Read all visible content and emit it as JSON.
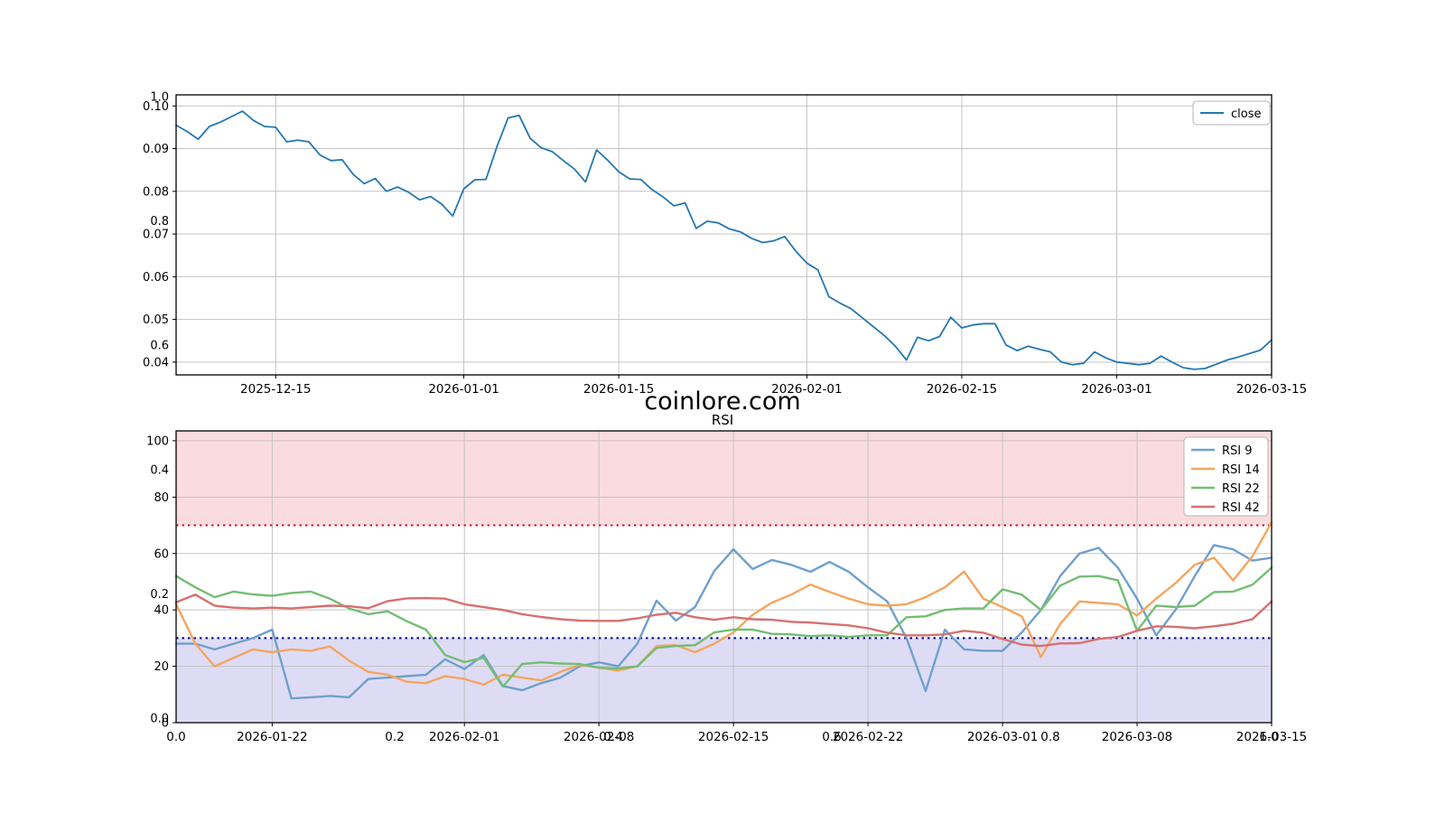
{
  "figure": {
    "watermark": "coinlore.com",
    "rsi_title": "RSI"
  },
  "colors": {
    "close": "#2478b0",
    "rsi9": "#6fa0cd",
    "rsi14": "#f5a55f",
    "rsi22": "#74bd74",
    "rsi42": "#d77070",
    "overbought_line": "#d4143c",
    "oversold_line": "#00008b",
    "overbought_band": "#fbdcde",
    "oversold_band": "#dedcf5",
    "grid": "#c3c3c3",
    "spine": "#000000",
    "watermark_color": "#8c8c8c",
    "legend_border": "#b3b3b3"
  },
  "overlay_axis": {
    "yticks": [
      {
        "label": "1.0",
        "value": 1.0
      },
      {
        "label": "0.8",
        "value": 0.8
      },
      {
        "label": "0.6",
        "value": 0.6
      },
      {
        "label": "0.4",
        "value": 0.4
      },
      {
        "label": "0.2",
        "value": 0.2
      },
      {
        "label": "0.0",
        "value": 0.0
      }
    ],
    "xticks": [
      {
        "label": "0.0",
        "value": 0.0
      },
      {
        "label": "0.2",
        "value": 0.2
      },
      {
        "label": "0.4",
        "value": 0.4
      },
      {
        "label": "0.6",
        "value": 0.6
      },
      {
        "label": "0.8",
        "value": 0.8
      },
      {
        "label": "1.0",
        "value": 1.0
      }
    ]
  },
  "legends": {
    "price": {
      "close": "close"
    },
    "rsi": {
      "rsi9": "RSI 9",
      "rsi14": "RSI 14",
      "rsi22": "RSI 22",
      "rsi42": "RSI 42"
    }
  },
  "chart_data": [
    {
      "type": "line",
      "name": "price",
      "x_start": "2025-12-06",
      "x_end": "2026-03-15",
      "ylim": [
        0.037,
        0.1026
      ],
      "grid": true,
      "legend_position": "upper right",
      "yticks": [
        {
          "label": "0.04",
          "value": 0.04
        },
        {
          "label": "0.05",
          "value": 0.05
        },
        {
          "label": "0.06",
          "value": 0.06
        },
        {
          "label": "0.07",
          "value": 0.07
        },
        {
          "label": "0.08",
          "value": 0.08
        },
        {
          "label": "0.09",
          "value": 0.09
        },
        {
          "label": "0.10",
          "value": 0.1
        }
      ],
      "xticks": [
        {
          "label": "2025-12-15",
          "date": "2025-12-15"
        },
        {
          "label": "2026-01-01",
          "date": "2026-01-01"
        },
        {
          "label": "2026-01-15",
          "date": "2026-01-15"
        },
        {
          "label": "2026-02-01",
          "date": "2026-02-01"
        },
        {
          "label": "2026-02-15",
          "date": "2026-02-15"
        },
        {
          "label": "2026-03-01",
          "date": "2026-03-01"
        },
        {
          "label": "2026-03-15",
          "date": "2026-03-15"
        }
      ],
      "series": [
        {
          "name": "close",
          "color_key": "close",
          "width": 1.8,
          "values": [
            0.0955,
            0.094,
            0.0922,
            0.0952,
            0.0962,
            0.0975,
            0.0988,
            0.0966,
            0.0952,
            0.095,
            0.0916,
            0.092,
            0.0916,
            0.0885,
            0.0872,
            0.0874,
            0.084,
            0.0818,
            0.083,
            0.08,
            0.081,
            0.0798,
            0.078,
            0.0788,
            0.077,
            0.0742,
            0.0806,
            0.0827,
            0.0828,
            0.0905,
            0.0972,
            0.0978,
            0.0924,
            0.0902,
            0.0893,
            0.0872,
            0.0852,
            0.0822,
            0.0897,
            0.0873,
            0.0846,
            0.0829,
            0.0828,
            0.0804,
            0.0787,
            0.0766,
            0.0773,
            0.0713,
            0.073,
            0.0726,
            0.0712,
            0.0705,
            0.069,
            0.068,
            0.0684,
            0.0694,
            0.066,
            0.0632,
            0.0616,
            0.0553,
            0.0538,
            0.0525,
            0.0504,
            0.0483,
            0.0462,
            0.0437,
            0.0405,
            0.0458,
            0.045,
            0.046,
            0.0505,
            0.048,
            0.0487,
            0.049,
            0.049,
            0.044,
            0.0427,
            0.0437,
            0.043,
            0.0424,
            0.04,
            0.0394,
            0.0397,
            0.0424,
            0.041,
            0.04,
            0.0397,
            0.0394,
            0.0397,
            0.0414,
            0.04,
            0.0387,
            0.0383,
            0.0385,
            0.0395,
            0.0405,
            0.0412,
            0.042,
            0.0428,
            0.0452
          ]
        }
      ]
    },
    {
      "type": "line",
      "name": "rsi",
      "x_start": "2026-01-17",
      "x_end": "2026-03-15",
      "ylim": [
        0,
        103.5
      ],
      "grid": true,
      "legend_position": "upper right",
      "yticks": [
        {
          "label": "0",
          "value": 0
        },
        {
          "label": "20",
          "value": 20
        },
        {
          "label": "40",
          "value": 40
        },
        {
          "label": "60",
          "value": 60
        },
        {
          "label": "80",
          "value": 80
        },
        {
          "label": "100",
          "value": 100
        }
      ],
      "xticks": [
        {
          "label": "2026-01-22",
          "date": "2026-01-22"
        },
        {
          "label": "2026-02-01",
          "date": "2026-02-01"
        },
        {
          "label": "2026-02-08",
          "date": "2026-02-08"
        },
        {
          "label": "2026-02-15",
          "date": "2026-02-15"
        },
        {
          "label": "2026-02-22",
          "date": "2026-02-22"
        },
        {
          "label": "2026-03-01",
          "date": "2026-03-01"
        },
        {
          "label": "2026-03-08",
          "date": "2026-03-08"
        },
        {
          "label": "2026-03-15",
          "date": "2026-03-15"
        }
      ],
      "bands": [
        {
          "name": "overbought-band",
          "from": 70,
          "to": 103.5,
          "color_key": "overbought_band"
        },
        {
          "name": "oversold-band",
          "from": 0,
          "to": 30,
          "color_key": "oversold_band"
        }
      ],
      "hlines": [
        {
          "name": "overbought-threshold",
          "value": 70,
          "color_key": "overbought_line"
        },
        {
          "name": "oversold-threshold",
          "value": 30,
          "color_key": "oversold_line"
        }
      ],
      "series": [
        {
          "name": "RSI 9",
          "color_key": "rsi9",
          "width": 2.4,
          "values": [
            28,
            28,
            26,
            28,
            30,
            33,
            8.6,
            9,
            9.5,
            9,
            15.5,
            16,
            16.5,
            17,
            22.5,
            19,
            24,
            13,
            11.5,
            14,
            16,
            20,
            21.4,
            20,
            28,
            43.3,
            36.2,
            41,
            53.8,
            61.5,
            54.5,
            57.7,
            56,
            53.5,
            57,
            53.5,
            48,
            43,
            30,
            11.2,
            33,
            26,
            25.5,
            25.5,
            32,
            40,
            52,
            60,
            62,
            55,
            44,
            31,
            40,
            52,
            63,
            61.5,
            57.5,
            58.5
          ]
        },
        {
          "name": "RSI 14",
          "color_key": "rsi14",
          "width": 2.4,
          "values": [
            42,
            28,
            20,
            23,
            26,
            25,
            26,
            25.5,
            27,
            22,
            18,
            17,
            14.5,
            14,
            16.5,
            15.5,
            13.5,
            17,
            16,
            15,
            18,
            20.5,
            19.5,
            18.5,
            20,
            27.2,
            27.5,
            25,
            28,
            32,
            38.3,
            42.6,
            45.4,
            49,
            46.4,
            44,
            42,
            41.5,
            42,
            44.5,
            48,
            53.6,
            44,
            41,
            37.7,
            23.3,
            35,
            43,
            42.5,
            42,
            38,
            44,
            49.5,
            56,
            58.5,
            50.5,
            59,
            71
          ]
        },
        {
          "name": "RSI 22",
          "color_key": "rsi22",
          "width": 2.4,
          "values": [
            52,
            48,
            44.5,
            46.5,
            45.5,
            45,
            46,
            46.5,
            44,
            40.5,
            38.5,
            39.5,
            36,
            33,
            24,
            21.5,
            23,
            12.8,
            20.8,
            21.4,
            21,
            20.8,
            19.5,
            19.2,
            20,
            26.5,
            27.2,
            27.5,
            32,
            33,
            33,
            31.5,
            31.3,
            30.7,
            31,
            30.4,
            31,
            31,
            37.4,
            37.7,
            40,
            40.5,
            40.5,
            47.3,
            45.4,
            40,
            48.6,
            51.8,
            52,
            50.5,
            32.6,
            41.5,
            41,
            41.5,
            46.3,
            46.5,
            48.9,
            55
          ]
        },
        {
          "name": "RSI 42",
          "color_key": "rsi42",
          "width": 2.4,
          "values": [
            42.7,
            45.4,
            41.5,
            40.8,
            40.5,
            40.8,
            40.5,
            41,
            41.5,
            41.3,
            40.6,
            43.1,
            44.1,
            44.2,
            44,
            42,
            41,
            40,
            38.5,
            37.5,
            36.7,
            36.2,
            36.1,
            36.1,
            37,
            38.3,
            39,
            37.4,
            36.5,
            37.4,
            36.7,
            36.5,
            35.8,
            35.5,
            35,
            34.5,
            33.5,
            31.9,
            31,
            31,
            31.3,
            32.6,
            31.9,
            29.7,
            27.7,
            27.2,
            28.1,
            28.2,
            29.7,
            30.4,
            32.6,
            34.2,
            34,
            33.5,
            34.2,
            35.1,
            36.7,
            43
          ]
        }
      ]
    }
  ]
}
